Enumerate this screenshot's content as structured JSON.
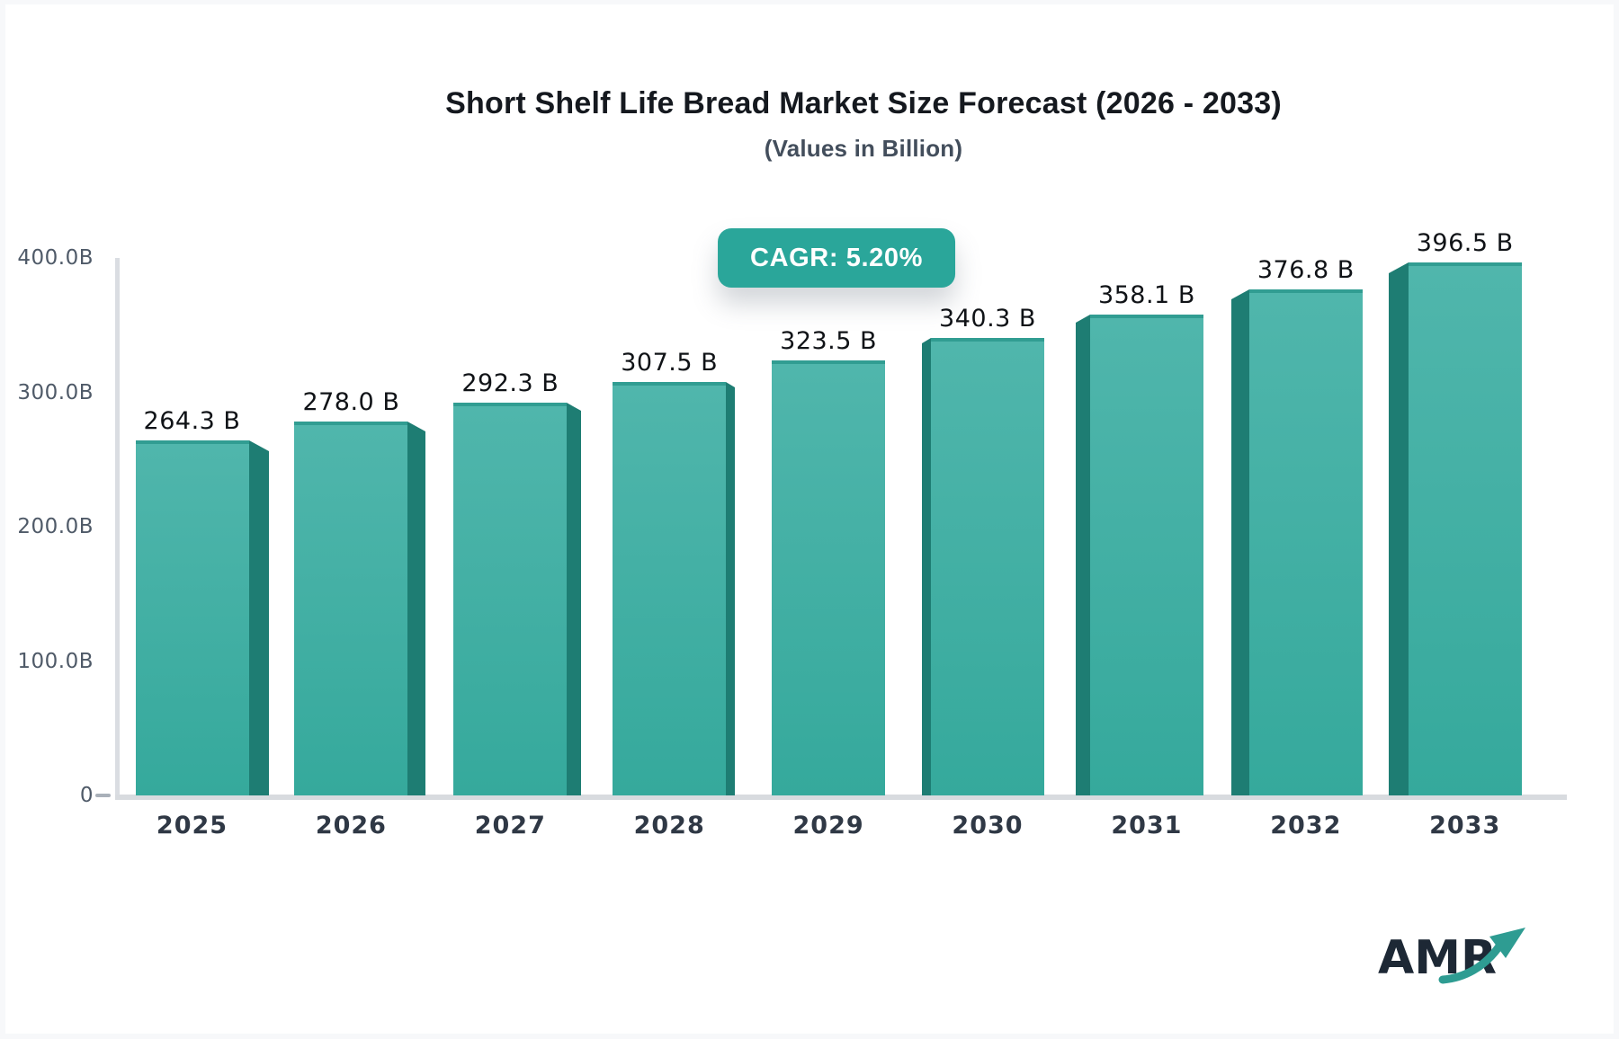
{
  "header": {
    "title": "Short Shelf Life Bread Market Size Forecast (2026 - 2033)",
    "subtitle": "(Values in Billion)",
    "cagr_badge": "CAGR: 5.20%"
  },
  "chart_data": {
    "type": "bar",
    "title": "Short Shelf Life Bread Market Size Forecast (2026 - 2033)",
    "subtitle": "(Values in Billion)",
    "unit": "Billion",
    "categories": [
      "2025",
      "2026",
      "2027",
      "2028",
      "2029",
      "2030",
      "2031",
      "2032",
      "2033"
    ],
    "values": [
      264.3,
      278.0,
      292.3,
      307.5,
      323.5,
      340.3,
      358.1,
      376.8,
      396.5
    ],
    "value_labels": [
      "264.3 B",
      "278.0 B",
      "292.3 B",
      "307.5 B",
      "323.5 B",
      "340.3 B",
      "358.1 B",
      "376.8 B",
      "396.5 B"
    ],
    "cagr_label": "CAGR: 5.20%",
    "xlabel": "",
    "ylabel": "",
    "ylim": [
      0,
      400
    ],
    "y_ticks": [
      {
        "value": 400,
        "label": "400.0B"
      },
      {
        "value": 300,
        "label": "300.0B"
      },
      {
        "value": 200,
        "label": "200.0B"
      },
      {
        "value": 100,
        "label": "100.0B"
      },
      {
        "value": 0,
        "label": "0"
      }
    ],
    "grid": false,
    "legend": false,
    "style": "3d-perspective-bars"
  },
  "colors": {
    "badge_background": "#2aa69a",
    "badge_text": "#ffffff",
    "bar_front_top": "#50b6ac",
    "bar_front_bottom": "#35a99c",
    "bar_side": "#1e7d73",
    "bar_top_edge": "#2d9a8f",
    "axis_line": "#dadde2",
    "baseline": "#d8dbdf",
    "logo_arrow": "#2e9c92"
  },
  "logo": {
    "text": "AMR",
    "icon": "growth-arrow-icon"
  }
}
